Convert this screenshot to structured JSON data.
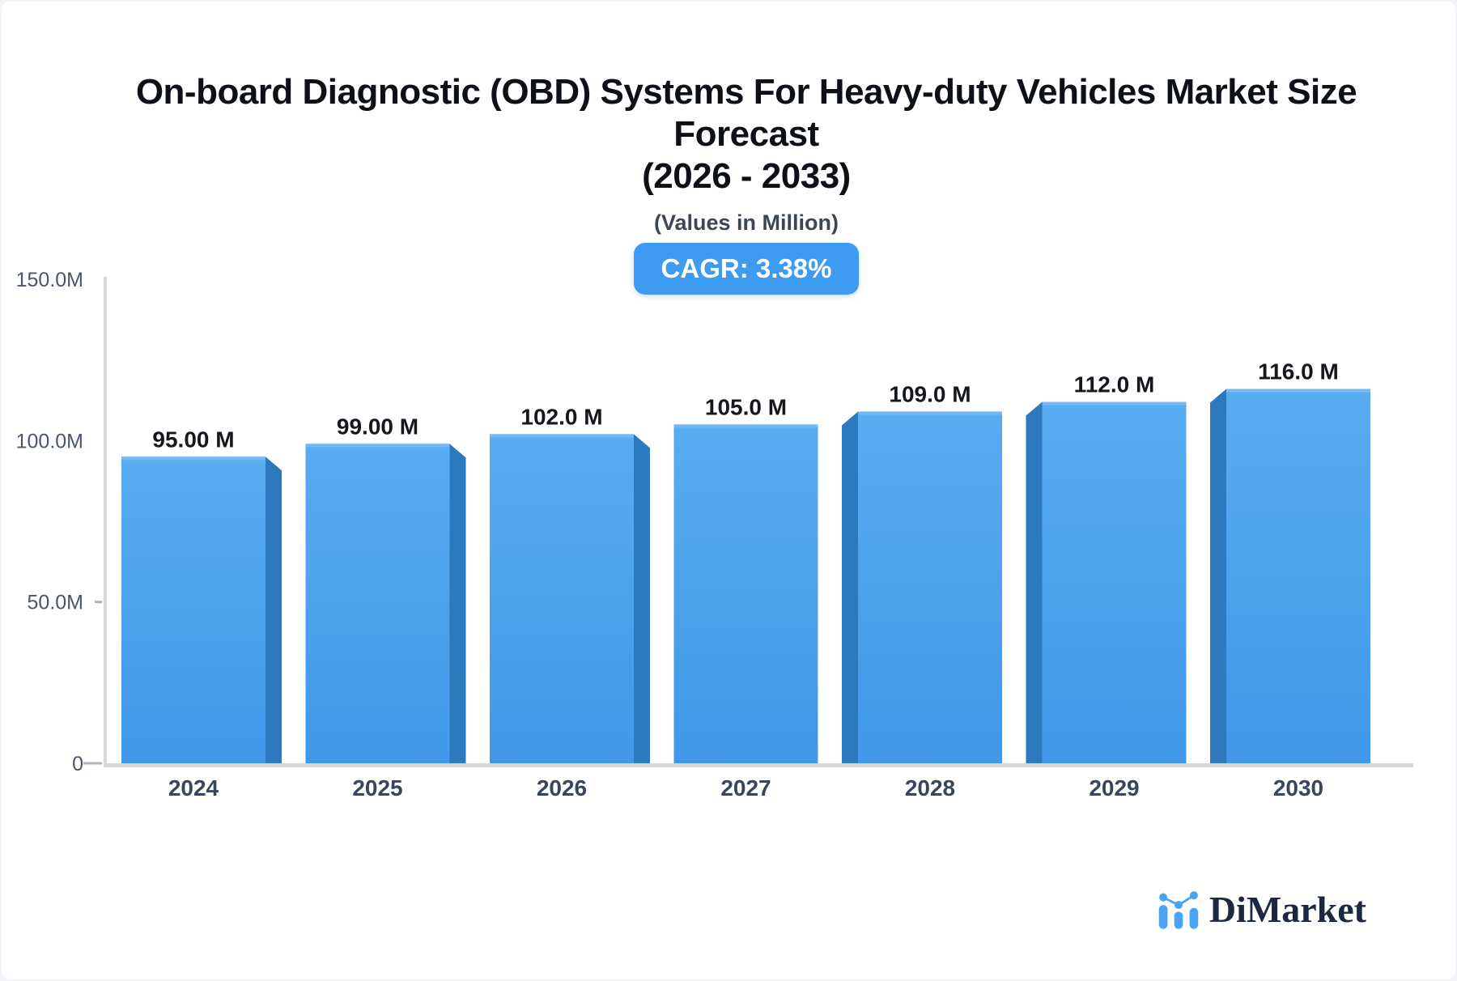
{
  "header": {
    "title_line1": "On-board Diagnostic (OBD) Systems For Heavy-duty Vehicles Market Size Forecast",
    "title_line2": "(2026 - 2033)",
    "subtitle": "(Values in Million)",
    "cagr_badge": "CAGR: 3.38%"
  },
  "chart_data": {
    "type": "bar",
    "title": "On-board Diagnostic (OBD) Systems For Heavy-duty Vehicles Market Size Forecast (2026 - 2033)",
    "subtitle": "(Values in Million)",
    "cagr_pct": 3.38,
    "unit": "Million",
    "categories": [
      "2024",
      "2025",
      "2026",
      "2027",
      "2028",
      "2029",
      "2030"
    ],
    "values": [
      95,
      99,
      102,
      105,
      109,
      112,
      116
    ],
    "value_labels": [
      "95.00 M",
      "99.00 M",
      "102.0 M",
      "105.0 M",
      "109.0 M",
      "112.0 M",
      "116.0 M"
    ],
    "xlabel": "",
    "ylabel": "",
    "ylim": [
      0,
      150
    ],
    "yticks": [
      {
        "value": 0,
        "label": "0",
        "tick": true
      },
      {
        "value": 50,
        "label": "50.0M",
        "tick": true
      },
      {
        "value": 100,
        "label": "100.0M",
        "tick": false
      },
      {
        "value": 150,
        "label": "150.0M",
        "tick": false
      }
    ],
    "grid": false,
    "legend": null,
    "colors": {
      "bar_face_top": "#5aacf0",
      "bar_face_bottom": "#4197e9",
      "bar_top_highlight": "#74b8f5",
      "bar_side": "#2d79bd",
      "axis_line": "#d5d8dd",
      "tick_mark": "#aeb5bf",
      "y_label": "#4c566a",
      "x_label": "#39455c",
      "value_label": "#14171d"
    }
  },
  "branding": {
    "logo_text": "DiMarket",
    "logo_icon": "bar-chart-logo-icon",
    "logo_color": "#4aa3f3"
  }
}
